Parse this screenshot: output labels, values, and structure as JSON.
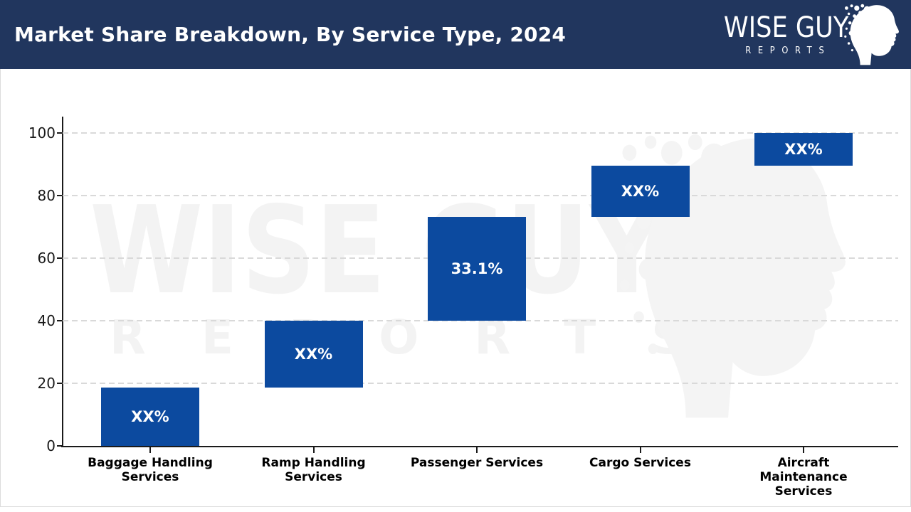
{
  "header": {
    "title": "Market Share Breakdown, By Service Type, 2024",
    "logo": {
      "primary": "WISE GUY",
      "secondary": "REPORTS"
    }
  },
  "watermark": {
    "primary": "WISE GUY",
    "secondary": "REPORTS"
  },
  "chart_data": {
    "type": "bar",
    "subtype": "waterfall",
    "title": "Market Share Breakdown, By Service Type, 2024",
    "categories": [
      "Baggage Handling Services",
      "Ramp Handling Services",
      "Passenger Services",
      "Cargo Services",
      "Aircraft Maintenance Services"
    ],
    "category_lines": [
      [
        "Baggage Handling",
        "Services"
      ],
      [
        "Ramp Handling",
        "Services"
      ],
      [
        "Passenger Services"
      ],
      [
        "Cargo Services"
      ],
      [
        "Aircraft",
        "Maintenance",
        "Services"
      ]
    ],
    "values": [
      18.7,
      21.3,
      33.1,
      16.5,
      10.4
    ],
    "bar_labels": [
      "XX%",
      "XX%",
      "33.1%",
      "XX%",
      "XX%"
    ],
    "segments": [
      {
        "start": 0.0,
        "end": 18.7
      },
      {
        "start": 18.7,
        "end": 40.0
      },
      {
        "start": 40.0,
        "end": 73.1
      },
      {
        "start": 73.1,
        "end": 89.6
      },
      {
        "start": 89.6,
        "end": 100.0
      }
    ],
    "xlabel": "",
    "ylabel": "",
    "ylim": [
      0,
      100
    ],
    "y_ticks": [
      0,
      20,
      40,
      60,
      80,
      100
    ],
    "grid": "horizontal-dashed",
    "legend": "none",
    "bar_color": "#0c4a9f",
    "bar_label_color": "#ffffff",
    "header_color": "#21365e",
    "gridline_color": "#d9d9d9"
  }
}
